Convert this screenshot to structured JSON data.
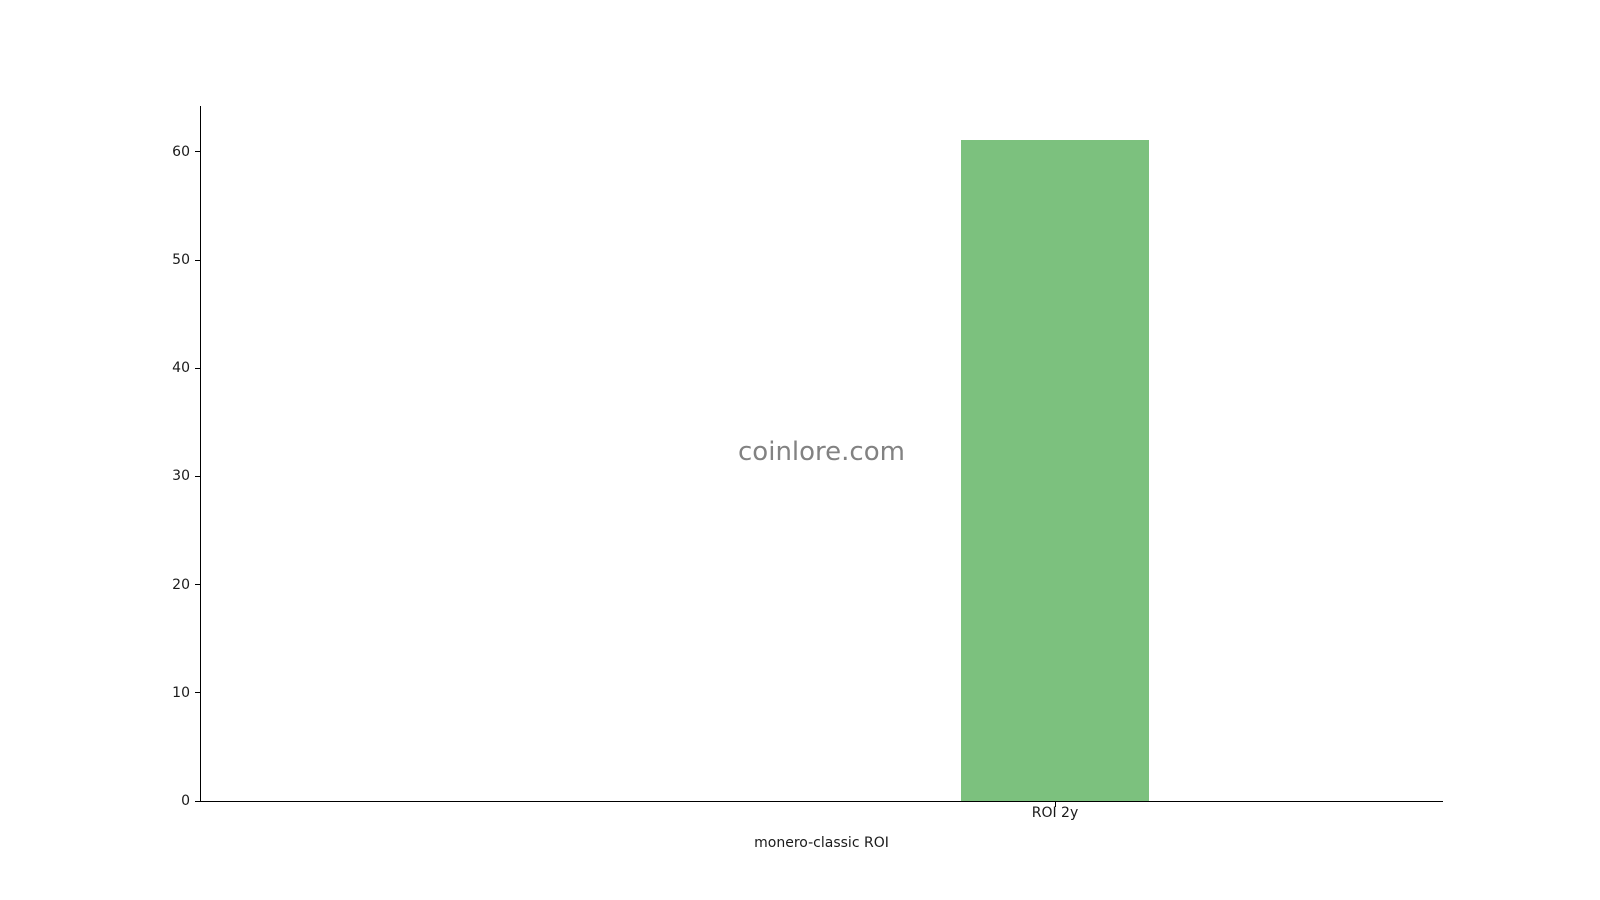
{
  "watermark": {
    "text": "coinlore.com",
    "color": "#828282"
  },
  "colors": {
    "background": "#ffffff",
    "axis": "#000000",
    "tick_label": "#1a1a1a",
    "bar": "#7cc17e",
    "watermark": "#828282"
  },
  "chart_data": {
    "type": "bar",
    "title": "",
    "categories": [
      "ROI 2y"
    ],
    "values": [
      61.1
    ],
    "series": [
      {
        "name": "ROI 2y",
        "values": [
          61.1
        ]
      }
    ],
    "xlabel": "monero-classic ROI",
    "ylabel": "",
    "yticks": [
      0,
      10,
      20,
      30,
      40,
      50,
      60
    ],
    "ylim": [
      0,
      64.3
    ],
    "grid": false,
    "legend": false,
    "bar_color": "#7cc17e",
    "watermark": "coinlore.com"
  }
}
